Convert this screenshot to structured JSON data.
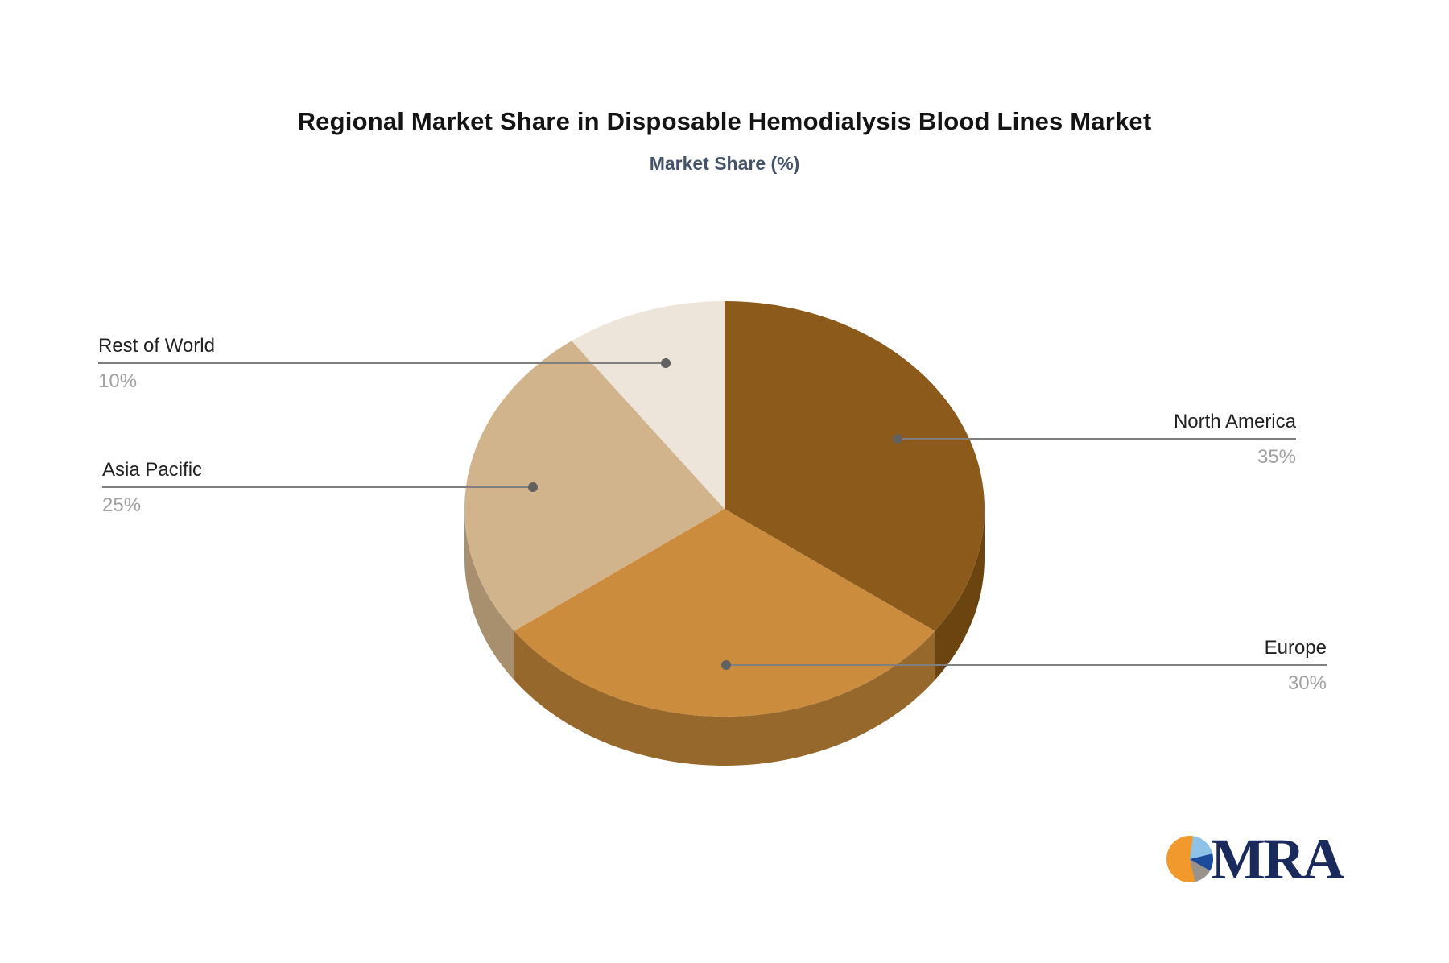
{
  "header": {
    "title": "Regional Market Share in Disposable Hemodialysis Blood Lines Market",
    "subtitle": "Market Share (%)"
  },
  "chart_data": {
    "type": "pie",
    "style": "3d",
    "title": "Regional Market Share in Disposable Hemodialysis Blood Lines Market",
    "subtitle": "Market Share (%)",
    "unit": "%",
    "direction": "clockwise",
    "start_angle": "12-o-clock",
    "slices": [
      {
        "label": "North America",
        "value": 35,
        "value_label": "35%",
        "color": "#8C5A1B",
        "side_color": "#6B440F",
        "label_side": "right"
      },
      {
        "label": "Europe",
        "value": 30,
        "value_label": "30%",
        "color": "#CC8C3E",
        "side_color": "#97682C",
        "label_side": "right"
      },
      {
        "label": "Asia Pacific",
        "value": 25,
        "value_label": "25%",
        "color": "#D2B48C",
        "side_color": "#A88F6E",
        "label_side": "left"
      },
      {
        "label": "Rest of World",
        "value": 10,
        "value_label": "10%",
        "color": "#EDE4DA",
        "side_color": "#BCB2A6",
        "label_side": "left"
      }
    ],
    "legend": "none",
    "label_text_color": "#212121",
    "value_text_color": "#A1A1A1",
    "leader_line_color": "#7F7F7F",
    "background": "#FFFFFF"
  },
  "logo": {
    "text": "MRA",
    "text_color": "#1B2A5C",
    "pie_colors": {
      "orange": "#F1992D",
      "light_blue": "#8FC2E9",
      "dark_blue": "#1C4B9B",
      "gray": "#9A938B"
    }
  }
}
